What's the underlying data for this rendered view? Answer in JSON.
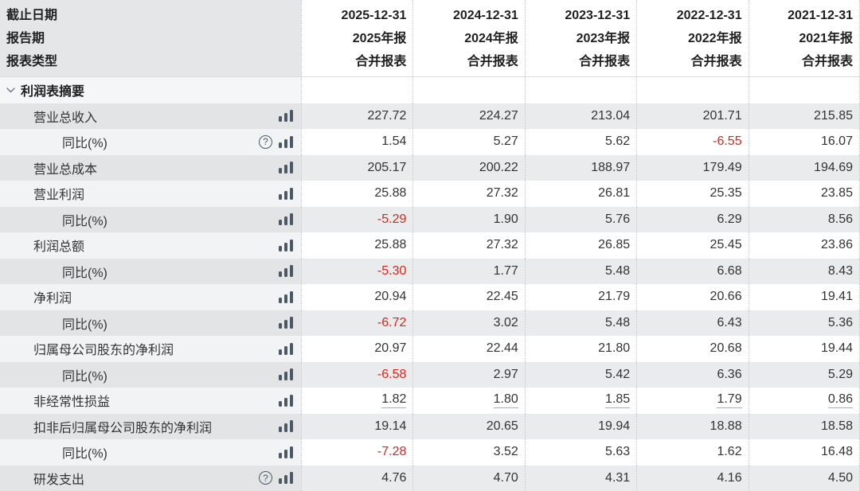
{
  "header": {
    "row_labels": [
      "截止日期",
      "报告期",
      "报表类型"
    ],
    "columns": [
      {
        "date": "2025-12-31",
        "period": "2025年报",
        "report_type": "合并报表"
      },
      {
        "date": "2024-12-31",
        "period": "2024年报",
        "report_type": "合并报表"
      },
      {
        "date": "2023-12-31",
        "period": "2023年报",
        "report_type": "合并报表"
      },
      {
        "date": "2022-12-31",
        "period": "2022年报",
        "report_type": "合并报表"
      },
      {
        "date": "2021-12-31",
        "period": "2021年报",
        "report_type": "合并报表"
      }
    ]
  },
  "section": {
    "label": "利润表摘要"
  },
  "rows": [
    {
      "label": "营业总收入",
      "level": 1,
      "icons": [
        "bar"
      ],
      "values": [
        "227.72",
        "224.27",
        "213.04",
        "201.71",
        "215.85"
      ]
    },
    {
      "label": "同比(%)",
      "level": 2,
      "icons": [
        "question",
        "bar"
      ],
      "values": [
        "1.54",
        "5.27",
        "5.62",
        "-6.55",
        "16.07"
      ]
    },
    {
      "label": "营业总成本",
      "level": 1,
      "icons": [
        "bar"
      ],
      "values": [
        "205.17",
        "200.22",
        "188.97",
        "179.49",
        "194.69"
      ]
    },
    {
      "label": "营业利润",
      "level": 1,
      "icons": [
        "bar"
      ],
      "values": [
        "25.88",
        "27.32",
        "26.81",
        "25.35",
        "23.85"
      ]
    },
    {
      "label": "同比(%)",
      "level": 2,
      "icons": [
        "bar"
      ],
      "values": [
        "-5.29",
        "1.90",
        "5.76",
        "6.29",
        "8.56"
      ]
    },
    {
      "label": "利润总额",
      "level": 1,
      "icons": [
        "bar"
      ],
      "values": [
        "25.88",
        "27.32",
        "26.85",
        "25.45",
        "23.86"
      ]
    },
    {
      "label": "同比(%)",
      "level": 2,
      "icons": [
        "bar"
      ],
      "values": [
        "-5.30",
        "1.77",
        "5.48",
        "6.68",
        "8.43"
      ]
    },
    {
      "label": "净利润",
      "level": 1,
      "icons": [
        "bar"
      ],
      "values": [
        "20.94",
        "22.45",
        "21.79",
        "20.66",
        "19.41"
      ]
    },
    {
      "label": "同比(%)",
      "level": 2,
      "icons": [
        "bar"
      ],
      "values": [
        "-6.72",
        "3.02",
        "5.48",
        "6.43",
        "5.36"
      ]
    },
    {
      "label": "归属母公司股东的净利润",
      "level": 1,
      "icons": [
        "bar"
      ],
      "values": [
        "20.97",
        "22.44",
        "21.80",
        "20.68",
        "19.44"
      ]
    },
    {
      "label": "同比(%)",
      "level": 2,
      "icons": [
        "bar"
      ],
      "values": [
        "-6.58",
        "2.97",
        "5.42",
        "6.36",
        "5.29"
      ]
    },
    {
      "label": "非经常性损益",
      "level": 1,
      "icons": [
        "bar"
      ],
      "underline": true,
      "values": [
        "1.82",
        "1.80",
        "1.85",
        "1.79",
        "0.86"
      ]
    },
    {
      "label": "扣非后归属母公司股东的净利润",
      "level": 1,
      "icons": [
        "bar"
      ],
      "values": [
        "19.14",
        "20.65",
        "19.94",
        "18.88",
        "18.58"
      ]
    },
    {
      "label": "同比(%)",
      "level": 2,
      "icons": [
        "bar"
      ],
      "values": [
        "-7.28",
        "3.52",
        "5.63",
        "1.62",
        "16.48"
      ]
    },
    {
      "label": "研发支出",
      "level": 1,
      "icons": [
        "question",
        "bar"
      ],
      "values": [
        "4.76",
        "4.70",
        "4.31",
        "4.16",
        "4.50"
      ]
    }
  ],
  "icons": {
    "chevron_down": "chevron-down",
    "question_mark": "?",
    "bar_chart": "bar-chart"
  },
  "colors": {
    "negative": "#d9261c",
    "icon_slate": "#4d5866",
    "row_dark": "#e9ebec",
    "row_light": "#ffffff"
  }
}
